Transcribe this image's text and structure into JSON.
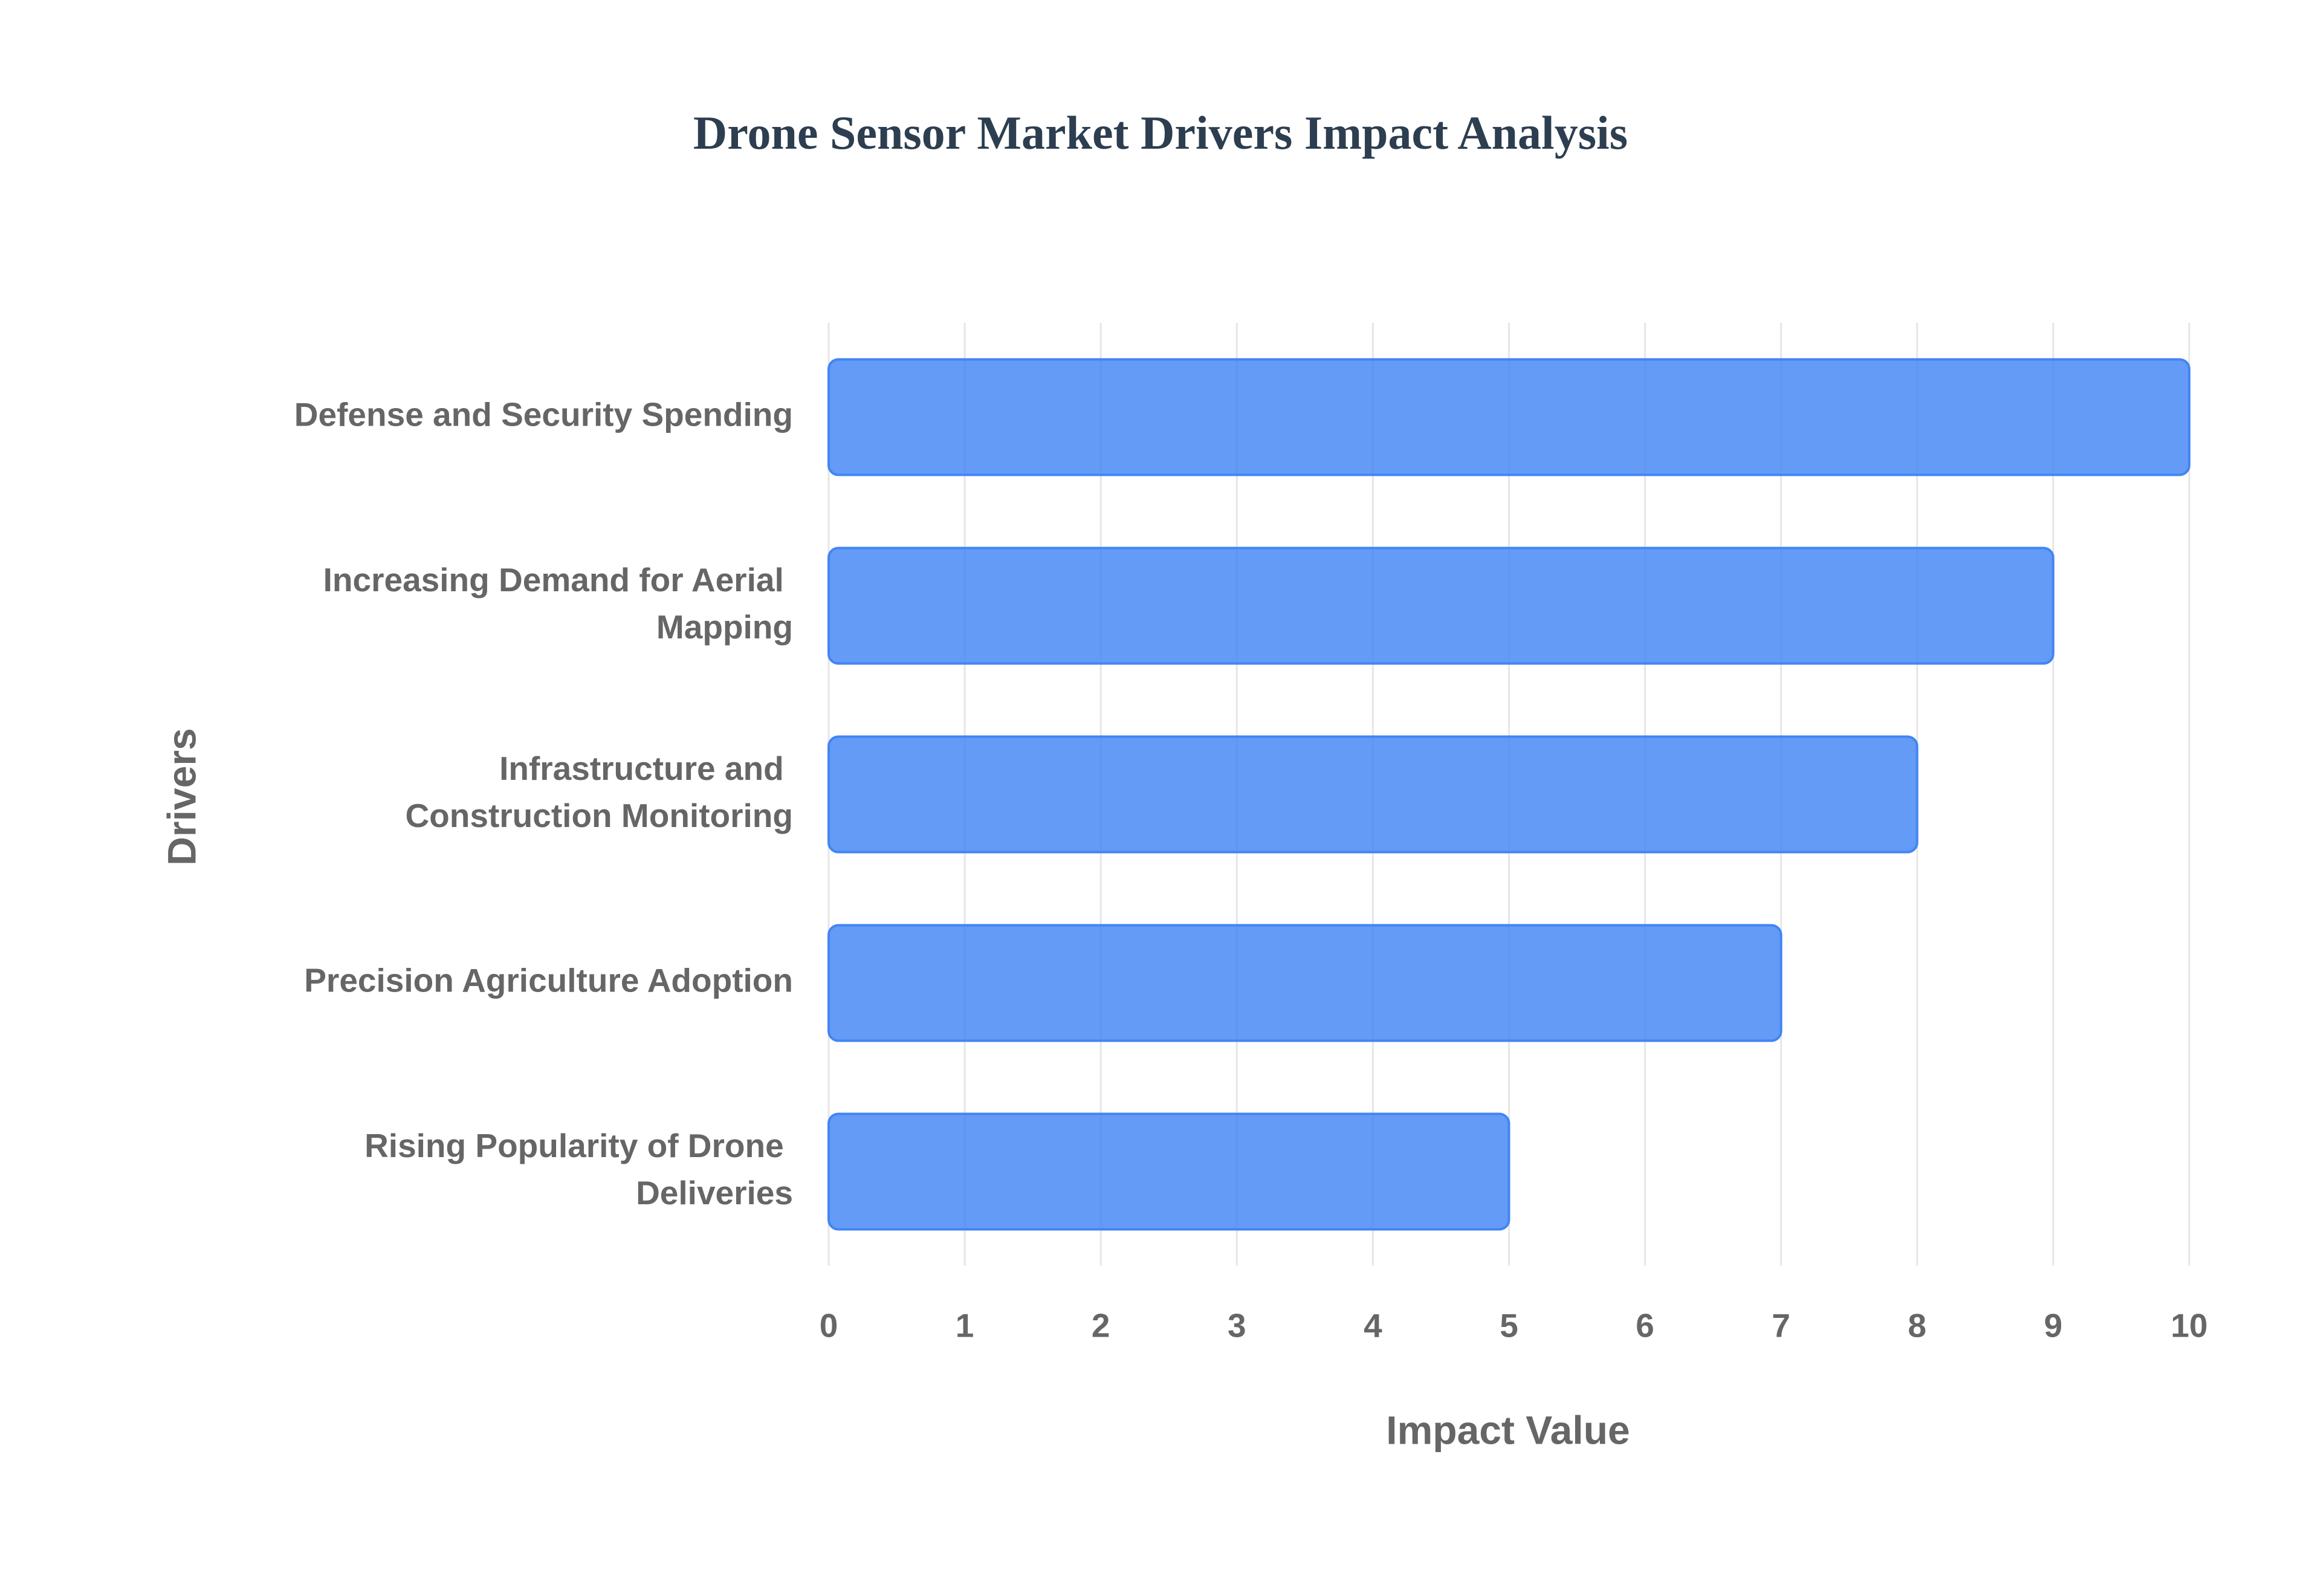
{
  "chart_data": {
    "type": "bar",
    "orientation": "horizontal",
    "title": "Drone Sensor Market Drivers Impact Analysis",
    "x_label": "Impact Value",
    "y_label": "Drivers",
    "categories": [
      "Defense and Security Spending",
      "Increasing Demand for Aerial Mapping",
      "Infrastructure and Construction Monitoring",
      "Precision Agriculture Adoption",
      "Rising Popularity of Drone Deliveries"
    ],
    "values": [
      10,
      9,
      8,
      7,
      5
    ],
    "color": "#4285f4",
    "xlim": [
      0,
      10
    ],
    "xticks": [
      0,
      1,
      2,
      3,
      4,
      5,
      6,
      7,
      8,
      9,
      10
    ],
    "grid": true
  }
}
